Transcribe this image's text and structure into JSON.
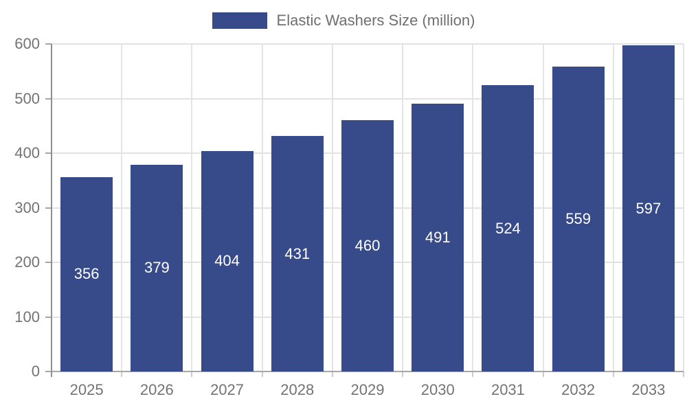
{
  "legend": {
    "label": "Elastic Washers Size (million)",
    "swatch_color": "#374b8a"
  },
  "chart_data": {
    "type": "bar",
    "title": "Elastic Washers Size (million)",
    "series_name": "Elastic Washers Size (million)",
    "categories": [
      "2025",
      "2026",
      "2027",
      "2028",
      "2029",
      "2030",
      "2031",
      "2032",
      "2033"
    ],
    "values": [
      356,
      379,
      404,
      431,
      460,
      491,
      524,
      559,
      597
    ],
    "value_labels": [
      "356",
      "379",
      "404",
      "431",
      "460",
      "491",
      "524",
      "559",
      "597"
    ],
    "xlabel": "",
    "ylabel": "",
    "ylim": [
      0,
      600
    ],
    "yticks": [
      0,
      100,
      200,
      300,
      400,
      500,
      600
    ],
    "ytick_labels": [
      "0",
      "100",
      "200",
      "300",
      "400",
      "500",
      "600"
    ],
    "grid": true,
    "legend_position": "top-center",
    "bar_color": "#374b8a",
    "value_label_color": "#ffffff",
    "tick_label_color": "#737373"
  }
}
